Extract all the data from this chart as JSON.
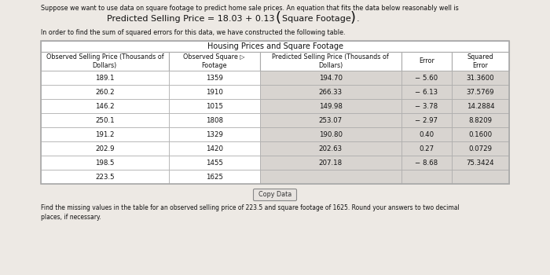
{
  "title_text": "Suppose we want to use data on square footage to predict home sale prices. An equation that fits the data below reasonably well is",
  "eq_prefix": "Predicted Selling Price = 18.03 + 0.13",
  "eq_paren_open": "(",
  "eq_inside": "Square Footage",
  "eq_paren_close": ")",
  "subtitle": "In order to find the sum of squared errors for this data, we have constructed the following table.",
  "table_title": "Housing Prices and Square Footage",
  "col_headers": [
    "Observed Selling Price (Thousands of\nDollars)",
    "Observed Square ▷\nFootage",
    "Predicted Selling Price (Thousands of\nDollars)",
    "Error",
    "Squared\nError"
  ],
  "rows": [
    [
      "189.1",
      "1359",
      "194.70",
      "− 5.60",
      "31.3600"
    ],
    [
      "260.2",
      "1910",
      "266.33",
      "− 6.13",
      "37.5769"
    ],
    [
      "146.2",
      "1015",
      "149.98",
      "− 3.78",
      "14.2884"
    ],
    [
      "250.1",
      "1808",
      "253.07",
      "− 2.97",
      "8.8209"
    ],
    [
      "191.2",
      "1329",
      "190.80",
      "0.40",
      "0.1600"
    ],
    [
      "202.9",
      "1420",
      "202.63",
      "0.27",
      "0.0729"
    ],
    [
      "198.5",
      "1455",
      "207.18",
      "− 8.68",
      "75.3424"
    ],
    [
      "223.5",
      "1625",
      "",
      "",
      ""
    ]
  ],
  "copy_data_btn": "Copy Data",
  "footer": "Find the missing values in the table for an observed selling price of 223.5 and square footage of 1625. Round your answers to two decimal\nplaces, if necessary.",
  "bg_color": "#ede9e4",
  "table_bg": "#ffffff",
  "header_bg": "#ffffff",
  "shaded_col_bg": "#d8d4d0",
  "border_color": "#aaaaaa",
  "font_size_title": 5.8,
  "font_size_eq": 8.0,
  "font_size_table_title": 7.0,
  "font_size_header": 5.8,
  "font_size_data": 6.2,
  "font_size_footer": 5.5
}
